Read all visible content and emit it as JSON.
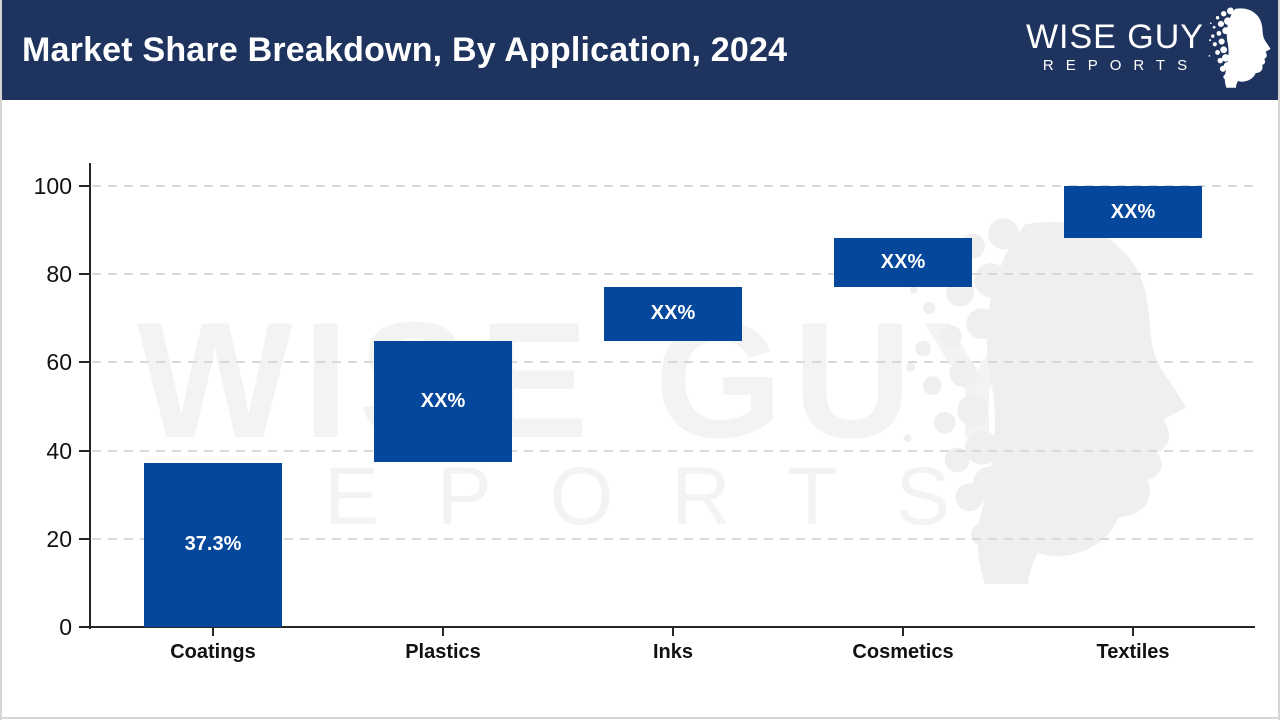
{
  "header": {
    "title": "Market Share Breakdown, By Application, 2024",
    "logo": {
      "wordmark": "WISE GUY",
      "subtext": "REPORTS"
    }
  },
  "watermark": {
    "wordmark": "WISE GUY",
    "subtext": "REPORTS"
  },
  "colors": {
    "header_bg": "#1e345f",
    "bar": "#05479b",
    "bar_label": "#ffffff",
    "grid": "#d9d9d9",
    "axis": "#262626",
    "tick_label": "#111111",
    "watermark": "#f3f3f3",
    "watermark_face": "#efefef",
    "edge": "#d6d6d6"
  },
  "chart_data": {
    "type": "bar",
    "subtype": "waterfall",
    "title": "Market Share Breakdown, By Application, 2024",
    "categories": [
      "Coatings",
      "Plastics",
      "Inks",
      "Cosmetics",
      "Textiles"
    ],
    "segments": [
      {
        "category": "Coatings",
        "start": 0,
        "end": 37.3,
        "label": "37.3%"
      },
      {
        "category": "Plastics",
        "start": 37.3,
        "end": 64.8,
        "label": "XX%"
      },
      {
        "category": "Inks",
        "start": 64.8,
        "end": 77.2,
        "label": "XX%"
      },
      {
        "category": "Cosmetics",
        "start": 77.2,
        "end": 88.2,
        "label": "XX%"
      },
      {
        "category": "Textiles",
        "start": 88.2,
        "end": 100,
        "label": "XX%"
      }
    ],
    "yticks": [
      0,
      20,
      40,
      60,
      80,
      100
    ],
    "ylim": [
      0,
      105
    ],
    "xlabel": "",
    "ylabel": "",
    "grid": "horizontal-dashed",
    "legend_position": "none",
    "bar_color": "#05479b",
    "value_label_color": "#ffffff"
  }
}
